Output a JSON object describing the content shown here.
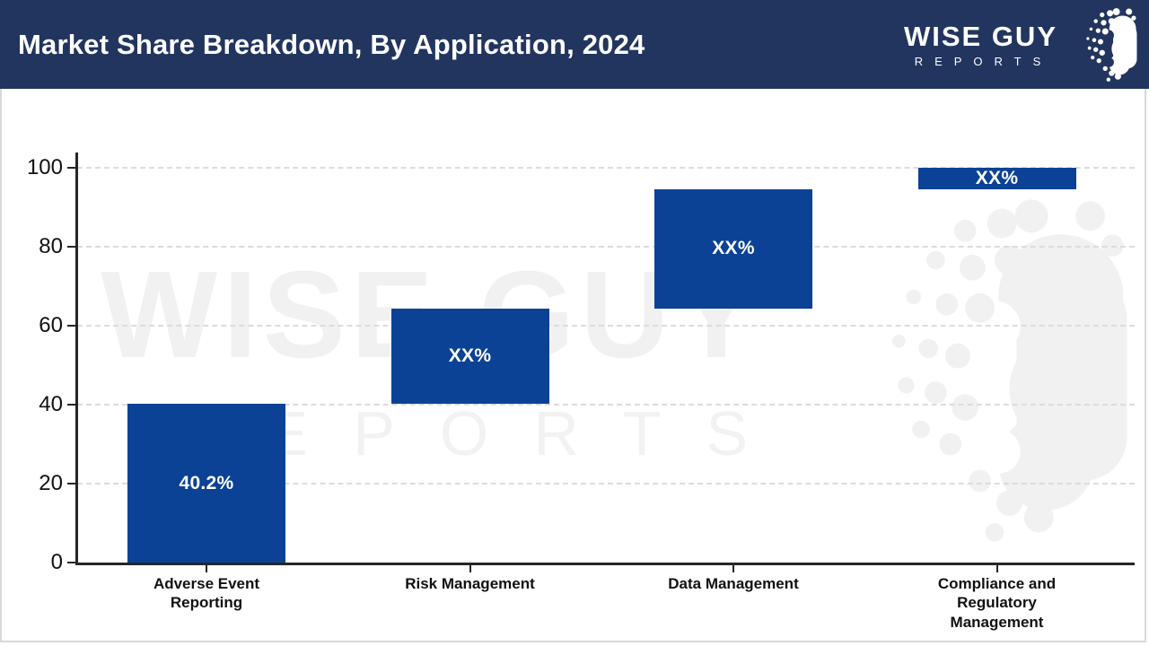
{
  "header": {
    "title": "Market Share Breakdown, By Application, 2024",
    "background": "#22355f",
    "logo": {
      "line1": "WISE GUY",
      "line2": "REPORTS"
    }
  },
  "watermark": {
    "line1": "WISE GUY",
    "line2": "REPORTS"
  },
  "chart_data": {
    "type": "bar",
    "subtype": "floating-waterfall",
    "title": "Market Share Breakdown, By Application, 2024",
    "categories": [
      "Adverse Event Reporting",
      "Risk Management",
      "Data Management",
      "Compliance and Regulatory Management"
    ],
    "segments": [
      {
        "category": "Adverse Event Reporting",
        "start": 0,
        "end": 40.2,
        "label": "40.2%"
      },
      {
        "category": "Risk Management",
        "start": 40.2,
        "end": 64.4,
        "label": "XX%"
      },
      {
        "category": "Data Management",
        "start": 64.4,
        "end": 94.6,
        "label": "XX%"
      },
      {
        "category": "Compliance and Regulatory Management",
        "start": 94.6,
        "end": 100,
        "label": "XX%"
      }
    ],
    "yticks": [
      0,
      20,
      40,
      60,
      80,
      100
    ],
    "ylim": [
      0,
      104
    ],
    "xlabel": "",
    "ylabel": "",
    "grid": "horizontal-dashed",
    "legend": "none",
    "bar_color": "#0b4295",
    "bar_label_color": "#ffffff",
    "gridline_color": "#dcdcdc",
    "axis_color": "#262626"
  }
}
